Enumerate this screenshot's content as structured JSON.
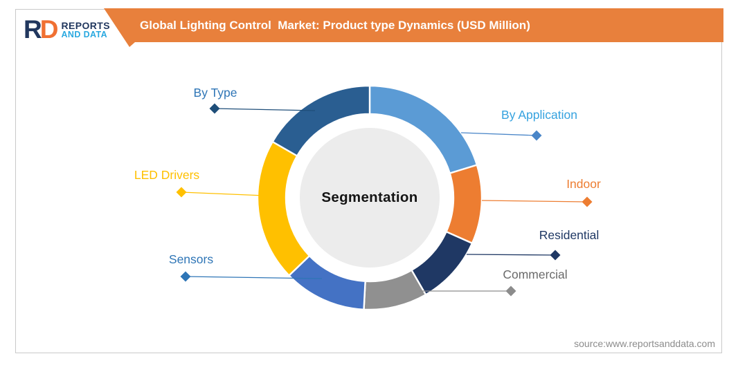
{
  "logo": {
    "mark_r": "R",
    "mark_d": "D",
    "line1": "REPORTS",
    "line2": "AND DATA",
    "colors": {
      "navy": "#21375E",
      "light_blue": "#2AA9E0",
      "orange": "#F07032"
    }
  },
  "banner": {
    "title": "Global Lighting Control  Market: Product type Dynamics (USD Million)",
    "bg_color": "#E8803C",
    "text_color": "#FFFFFF"
  },
  "footer": {
    "source": "source:www.reportsanddata.com"
  },
  "chart_data": {
    "type": "pie",
    "subtype": "donut",
    "title": "Global Lighting Control  Market: Product type Dynamics (USD Million)",
    "center_label": "Segmentation",
    "legend_position": "callout-labels-around-donut",
    "start_angle_deg": 0,
    "segments": [
      {
        "label": "By Application",
        "angle_deg": 73,
        "share_pct": 20.3,
        "color": "#5B9BD5",
        "label_color": "#35A2DF",
        "marker_color": "#4A86C8"
      },
      {
        "label": "Indoor",
        "angle_deg": 41,
        "share_pct": 11.4,
        "color": "#ED7D31",
        "label_color": "#ED7D31",
        "marker_color": "#ED7D31"
      },
      {
        "label": "Residential",
        "angle_deg": 36,
        "share_pct": 10.0,
        "color": "#1F3864",
        "label_color": "#1F3864",
        "marker_color": "#1F3864"
      },
      {
        "label": "Commercial",
        "angle_deg": 33,
        "share_pct": 9.2,
        "color": "#909090",
        "label_color": "#6A6A6A",
        "marker_color": "#8C8C8C"
      },
      {
        "label": "Sensors",
        "angle_deg": 43,
        "share_pct": 11.9,
        "color": "#4472C4",
        "label_color": "#2E75B6",
        "marker_color": "#2E75B6"
      },
      {
        "label": "LED Drivers",
        "angle_deg": 74,
        "share_pct": 20.6,
        "color": "#FFC000",
        "label_color": "#FFC000",
        "marker_color": "#FFC000"
      },
      {
        "label": "By Type",
        "angle_deg": 60,
        "share_pct": 16.7,
        "color": "#2A5E91",
        "label_color": "#2E75B6",
        "marker_color": "#1F4E79"
      }
    ]
  }
}
